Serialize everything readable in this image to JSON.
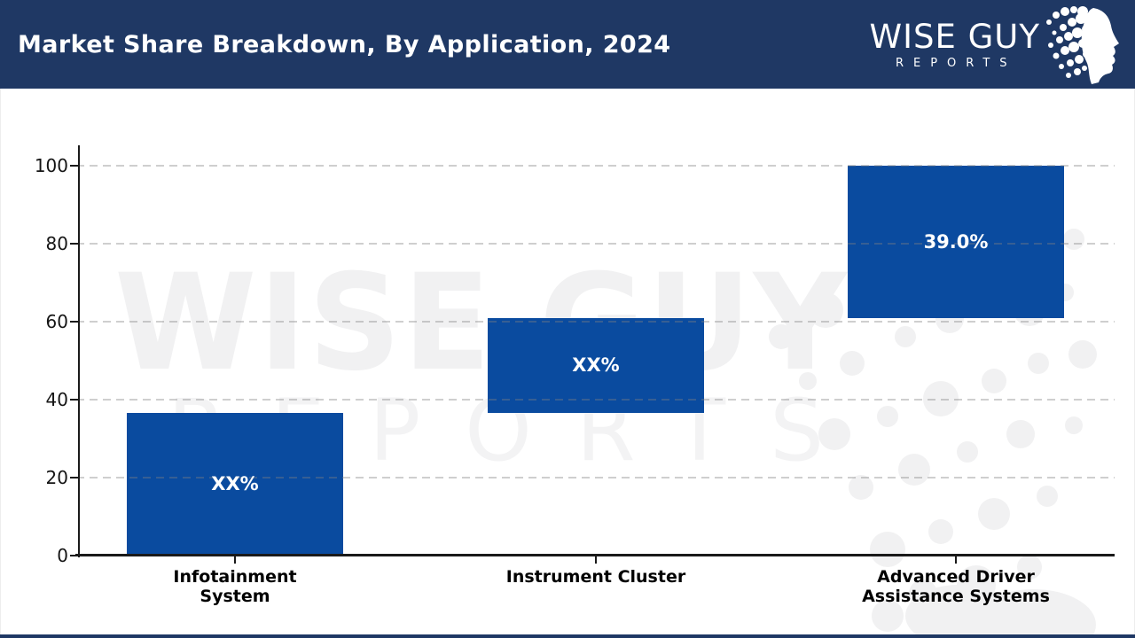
{
  "header": {
    "logo": {
      "line1": "WISE GUY",
      "line2": "REPORTS"
    }
  },
  "watermark": {
    "line1": "WISE GUY",
    "line2": "REPORTS"
  },
  "chart_data": {
    "type": "bar",
    "subtype": "floating-waterfall",
    "title": "Market Share Breakdown, By Application, 2024",
    "categories": [
      "Infotainment System",
      "Instrument Cluster",
      "Advanced Driver Assistance Systems"
    ],
    "segments": [
      {
        "category_lines": [
          "Infotainment",
          "System"
        ],
        "start": 0,
        "end": 36.6,
        "label": "XX%"
      },
      {
        "category_lines": [
          "Instrument Cluster"
        ],
        "start": 36.6,
        "end": 61.0,
        "label": "XX%"
      },
      {
        "category_lines": [
          "Advanced Driver",
          "Assistance Systems"
        ],
        "start": 61.0,
        "end": 100.0,
        "label": "39.0%"
      }
    ],
    "values_pct": [
      36.6,
      24.4,
      39.0
    ],
    "yticks": [
      0,
      20,
      40,
      60,
      80,
      100
    ],
    "ylim": [
      0,
      100
    ],
    "xlabel": "",
    "ylabel": "",
    "grid": "horizontal-dashed",
    "legend": "none",
    "bar_color": "#0a4b9f"
  },
  "colors": {
    "header_bg": "#1f3864",
    "footer_bg": "#1f3864",
    "bar": "#0a4b9f",
    "axis": "#1a1a1a",
    "grid": "rgba(128,128,128,0.38)",
    "watermark": "#f1f1f2",
    "text_on_bar": "#ffffff"
  }
}
